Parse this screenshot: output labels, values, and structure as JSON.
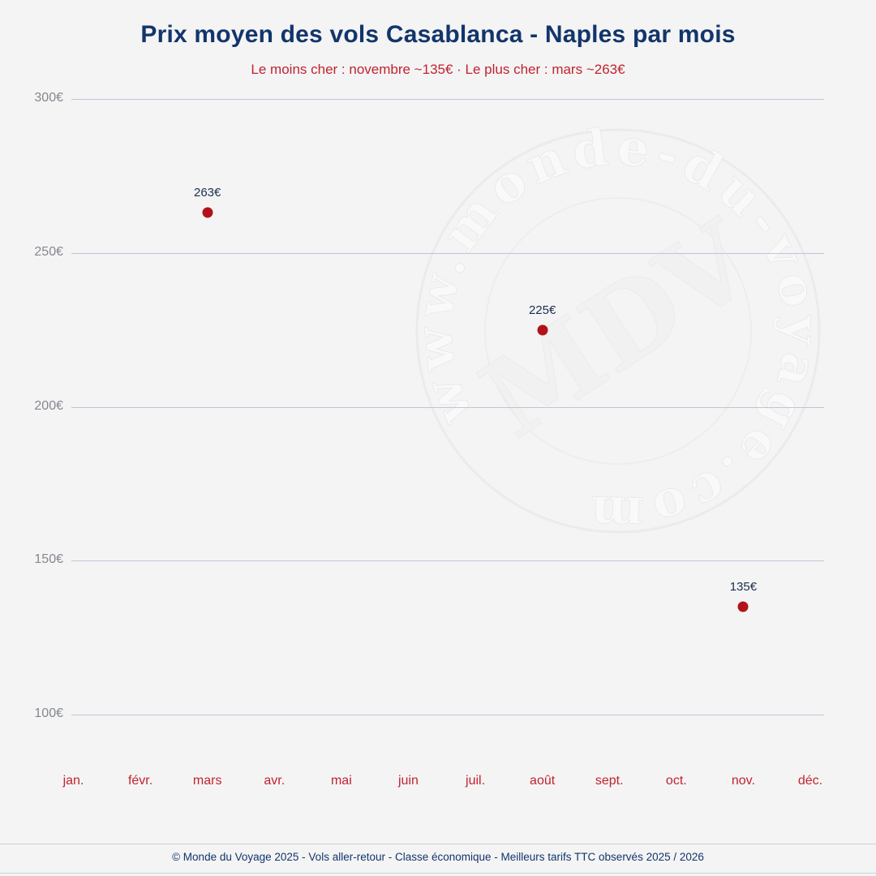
{
  "chart_data": {
    "type": "scatter",
    "title": "Prix moyen des vols Casablanca - Naples par mois",
    "subtitle": "Le moins cher : novembre ~135€ · Le plus cher : mars ~263€",
    "categories": [
      "jan.",
      "févr.",
      "mars",
      "avr.",
      "mai",
      "juin",
      "juil.",
      "août",
      "sept.",
      "oct.",
      "nov.",
      "déc."
    ],
    "values": [
      null,
      null,
      263,
      null,
      null,
      null,
      null,
      225,
      null,
      null,
      135,
      null
    ],
    "unit": "€",
    "xlabel": "",
    "ylabel": "",
    "yticks": [
      300,
      250,
      200,
      150,
      100
    ],
    "ytick_labels": [
      "300€",
      "250€",
      "200€",
      "150€",
      "100€"
    ],
    "ylim": [
      100,
      300
    ],
    "grid": true,
    "legend": "none",
    "point_color": "#b3121a",
    "annotated_points": [
      {
        "month": "mars",
        "value": 263,
        "label": "263€"
      },
      {
        "month": "août",
        "value": 225,
        "label": "225€"
      },
      {
        "month": "nov.",
        "value": 135,
        "label": "135€"
      }
    ]
  },
  "watermark": {
    "ring_text": "www.monde-du-voyage.com",
    "center_text": "MDV"
  },
  "footer": {
    "text": "© Monde du Voyage 2025 - Vols aller-retour - Classe économique - Meilleurs tarifs TTC observés 2025 / 2026"
  }
}
